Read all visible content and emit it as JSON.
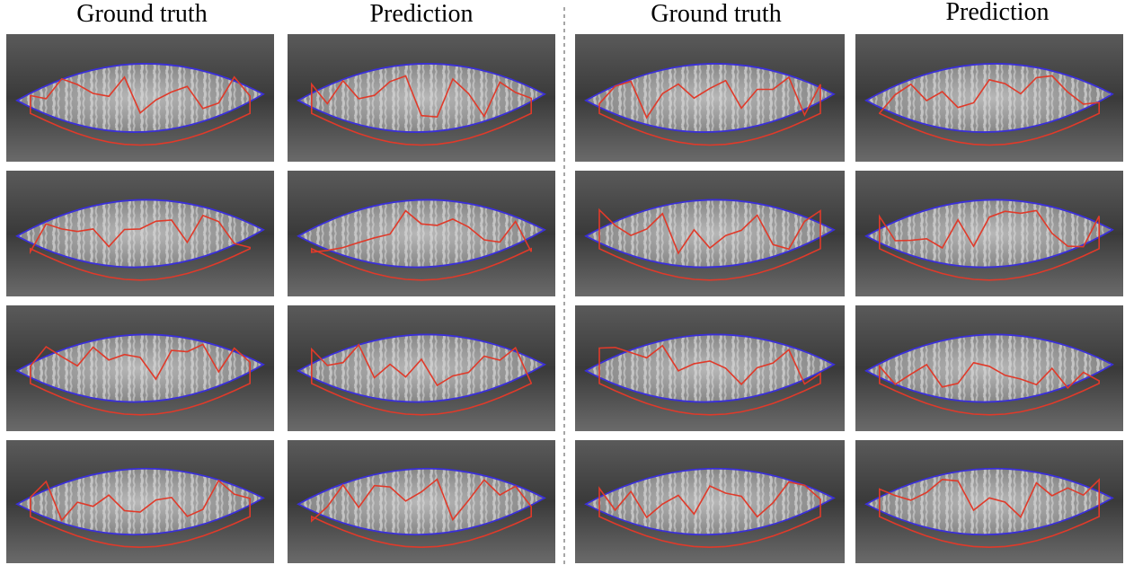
{
  "headers": [
    "Ground truth",
    "Prediction",
    "Ground truth",
    "Prediction"
  ]
}
